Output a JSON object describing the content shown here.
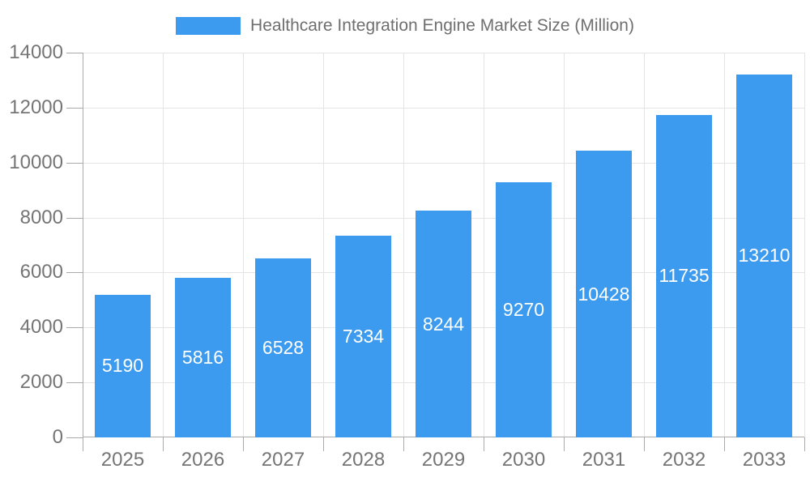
{
  "chart_data": {
    "type": "bar",
    "title": "Healthcare Integration Engine Market Size (Million)",
    "legend": [
      "Healthcare Integration Engine Market Size (Million)"
    ],
    "legend_position": "top",
    "categories": [
      "2025",
      "2026",
      "2027",
      "2028",
      "2029",
      "2030",
      "2031",
      "2032",
      "2033"
    ],
    "values": [
      5190,
      5816,
      6528,
      7334,
      8244,
      9270,
      10428,
      11735,
      13210
    ],
    "xlabel": "",
    "ylabel": "",
    "ylim": [
      0,
      14000
    ],
    "ytick_step": 2000,
    "ytick_labels": [
      "0",
      "2000",
      "4000",
      "6000",
      "8000",
      "10000",
      "12000",
      "14000"
    ],
    "grid": true,
    "colors": {
      "bar": "#3C9BEE",
      "grid": "#E4E4E4",
      "axis": "#AAAAAA",
      "tick_text": "#757575",
      "legend_text": "#6F6F6F",
      "bar_label": "#FFFFFF",
      "background": "#FFFFFF"
    }
  }
}
